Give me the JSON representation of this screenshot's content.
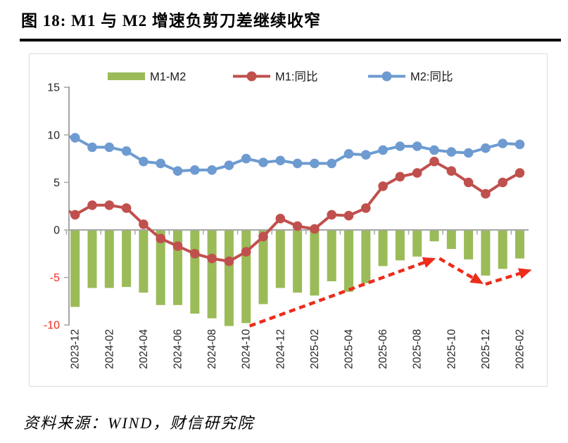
{
  "page": {
    "title": "图 18:  M1 与 M2 增速负剪刀差继续收窄",
    "source": "资料来源：WIND，财信研究院"
  },
  "chart_data": {
    "type": "combo-bar-line",
    "title": "",
    "xlabel": "",
    "ylabel": "",
    "ylim": [
      -10,
      15
    ],
    "yticks": [
      15,
      10,
      5,
      0,
      -5,
      -10
    ],
    "xtick_every": 2,
    "gridlines": false,
    "legend_position": "top",
    "axis_color": "#A6A6A6",
    "tick_label_color": "#262626",
    "negative_tick_color": "#ED2C1C",
    "categories": [
      "2023-12",
      "2024-01",
      "2024-02",
      "2024-03",
      "2024-04",
      "2024-05",
      "2024-06",
      "2024-07",
      "2024-08",
      "2024-09",
      "2024-10",
      "2024-11",
      "2024-12",
      "2025-01",
      "2025-02",
      "2025-03",
      "2025-04",
      "2025-05",
      "2025-06",
      "2025-07",
      "2025-08",
      "2025-09",
      "2025-10",
      "2025-11",
      "2025-12",
      "2026-01",
      "2026-02"
    ],
    "series": [
      {
        "name": "M1-M2",
        "type": "bar",
        "color": "#9BBB59",
        "values": [
          -8.1,
          -6.1,
          -6.1,
          -6.0,
          -6.6,
          -7.9,
          -7.9,
          -8.8,
          -9.3,
          -10.1,
          -9.8,
          -7.8,
          -6.1,
          -6.6,
          -6.9,
          -5.4,
          -6.5,
          -5.6,
          -3.8,
          -3.2,
          -2.8,
          -1.2,
          -2.0,
          -3.1,
          -4.8,
          -4.1,
          -3.0
        ]
      },
      {
        "name": "M1:同比",
        "type": "line",
        "color": "#C0504D",
        "lead_in": {
          "category": "2023-11",
          "value": 2.6
        },
        "values": [
          1.6,
          2.6,
          2.6,
          2.3,
          0.6,
          -0.9,
          -1.7,
          -2.5,
          -3.0,
          -3.3,
          -2.3,
          -0.7,
          1.2,
          0.4,
          0.1,
          1.6,
          1.5,
          2.3,
          4.6,
          5.6,
          6.0,
          7.2,
          6.2,
          5.0,
          3.8,
          5.0,
          6.0
        ]
      },
      {
        "name": "M2:同比",
        "type": "line",
        "color": "#6D9BD1",
        "lead_in": {
          "category": "2023-11",
          "value": 10.0
        },
        "values": [
          9.7,
          8.7,
          8.7,
          8.3,
          7.2,
          7.0,
          6.2,
          6.3,
          6.3,
          6.8,
          7.5,
          7.1,
          7.3,
          7.0,
          7.0,
          7.0,
          8.0,
          7.9,
          8.4,
          8.8,
          8.8,
          8.4,
          8.2,
          8.1,
          8.6,
          9.1,
          9.0
        ]
      }
    ],
    "annotations": {
      "color": "#ED2C1C",
      "style": "dashed-arrow",
      "arrows": [
        {
          "x1": 10.2,
          "y1": -10.1,
          "x2": 20.9,
          "y2": -3.1
        },
        {
          "x1": 21.3,
          "y1": -3.0,
          "x2": 23.7,
          "y2": -5.5
        },
        {
          "x1": 24.0,
          "y1": -5.7,
          "x2": 26.5,
          "y2": -4.3
        }
      ]
    }
  }
}
